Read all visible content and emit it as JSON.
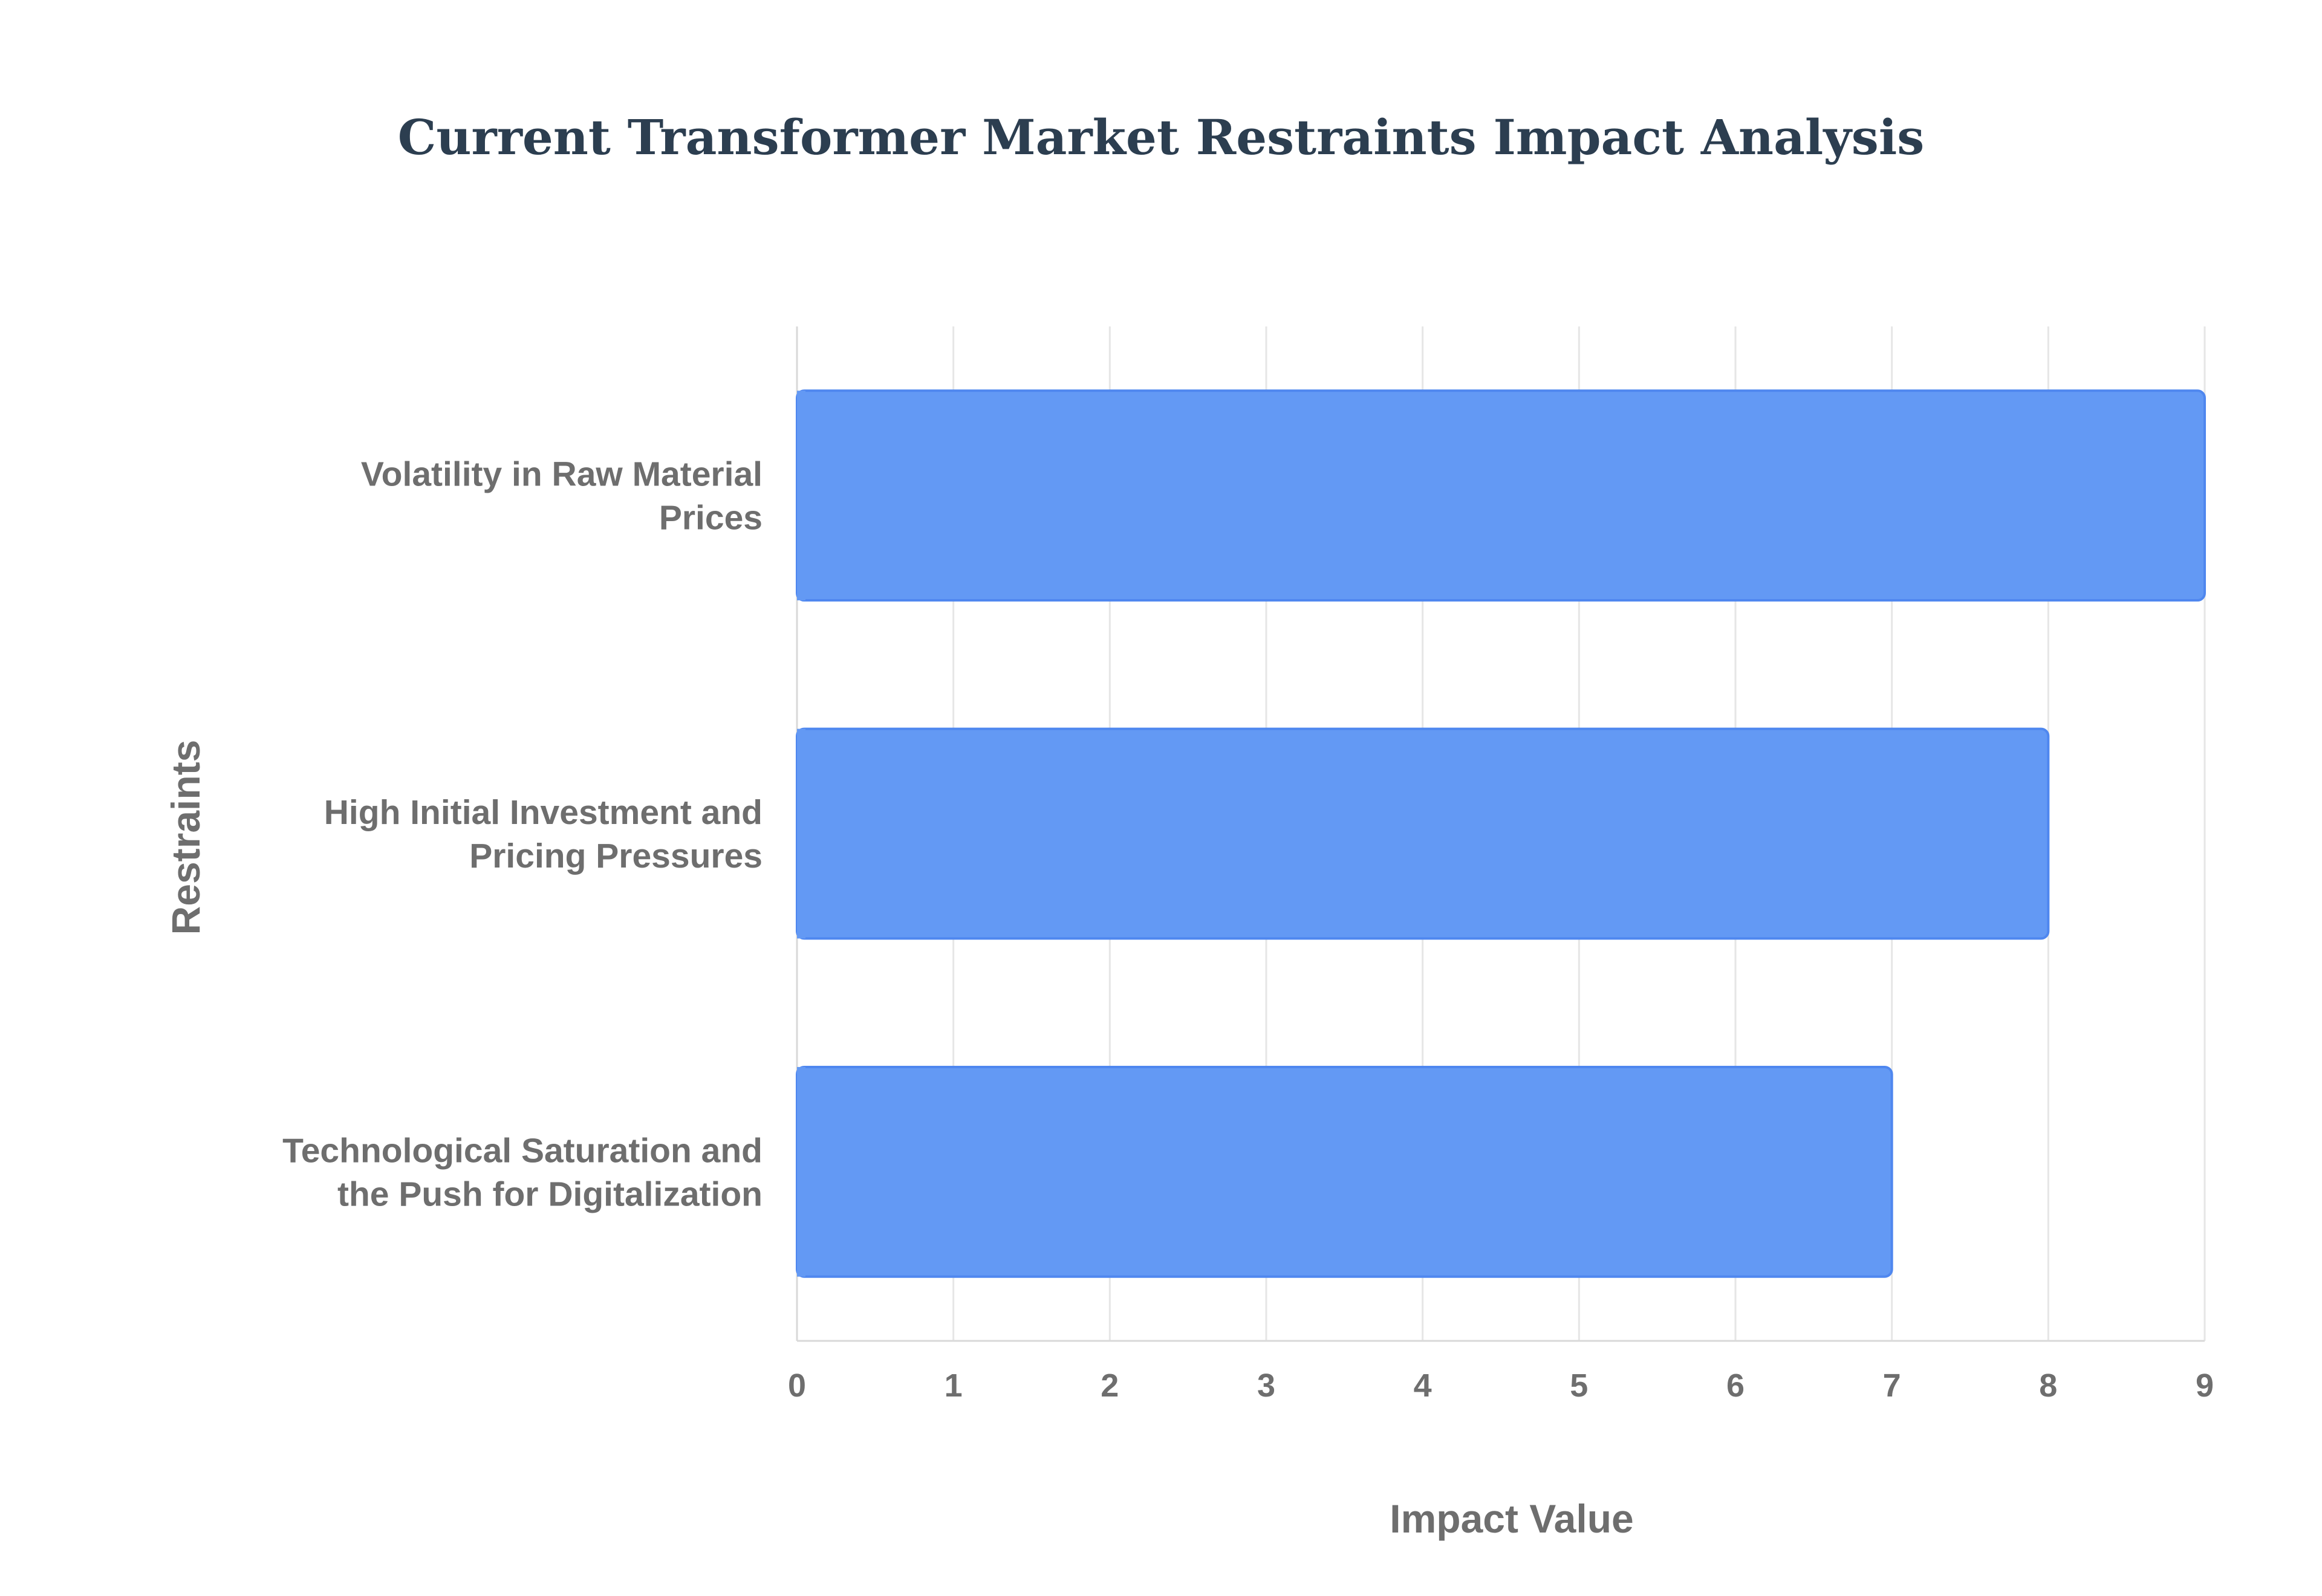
{
  "chart_data": {
    "type": "bar",
    "orientation": "horizontal",
    "title": "Current Transformer Market Restraints Impact Analysis",
    "xlabel": "Impact Value",
    "ylabel": "Restraints",
    "categories": [
      [
        "Volatility in Raw Material",
        "Prices"
      ],
      [
        "High Initial Investment and",
        "Pricing Pressures"
      ],
      [
        "Technological Saturation and",
        "the Push for Digitalization"
      ]
    ],
    "values": [
      9,
      8,
      7
    ],
    "xlim": [
      0,
      9
    ],
    "x_ticks": [
      "0",
      "1",
      "2",
      "3",
      "4",
      "5",
      "6",
      "7",
      "8",
      "9"
    ],
    "grid": true,
    "legend": "none",
    "colors": {
      "bar_fill": "#6399f4",
      "bar_stroke": "#4f87ef",
      "title": "#2c3e50",
      "labels": "#6e6e6e",
      "grid": "#e6e6e6"
    }
  }
}
